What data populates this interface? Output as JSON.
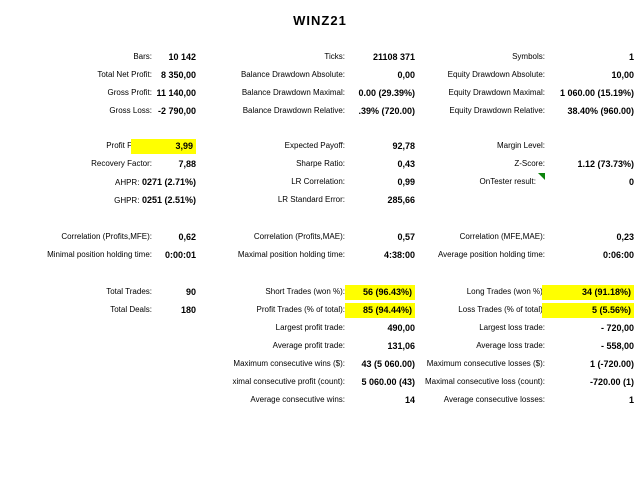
{
  "title": "WINZ21",
  "colors": {
    "background": "#ffffff",
    "text": "#000000",
    "highlight": "#ffff00",
    "marker": "#0c840c"
  },
  "report": {
    "blocks": [
      {
        "rows": [
          {
            "l1": "Bars:",
            "v1": "10 142",
            "l2": "Ticks:",
            "v2": "21108 371",
            "l3": "Symbols:",
            "v3": "1"
          },
          {
            "l1": "Total Net Profit:",
            "v1": "8 350,00",
            "l2": "Balance Drawdown Absolute:",
            "v2": "0,00",
            "l3": "Equity Drawdown Absolute:",
            "v3": "10,00"
          },
          {
            "l1": "Gross Profit:",
            "v1": "11 140,00",
            "l2": "Balance Drawdown Maximal:",
            "v2": "0.00 (29.39%)",
            "l3": "Equity Drawdown Maximal:",
            "v3": "1 060.00 (15.19%)"
          },
          {
            "l1": "Gross Loss:",
            "v1": "-2 790,00",
            "l2": "Balance Drawdown Relative:",
            "v2": ".39% (720.00)",
            "l3": "Equity Drawdown Relative:",
            "v3": "38.40% (960.00)"
          }
        ]
      },
      {
        "rows": [
          {
            "l1": "Profit Factor:",
            "v1": "3,99",
            "hl1": true,
            "l2": "Expected Payoff:",
            "v2": "92,78",
            "l3": "Margin Level:",
            "v3": ""
          },
          {
            "l1": "Recovery Factor:",
            "v1": "7,88",
            "l2": "Sharpe Ratio:",
            "v2": "0,43",
            "l3": "Z-Score:",
            "v3": "1.12 (73.73%)"
          },
          {
            "l1": "AHPR:",
            "v1": "0271 (2.71%)",
            "m1": true,
            "l2": "LR Correlation:",
            "v2": "0,99",
            "l3": "OnTester result:",
            "marker3": true,
            "v3": "0"
          },
          {
            "l1": "GHPR:",
            "v1": "0251 (2.51%)",
            "m1": true,
            "l2": "LR Standard Error:",
            "v2": "285,66",
            "l3": "",
            "v3": ""
          }
        ]
      },
      {
        "rows": [
          {
            "l1": "Correlation (Profits,MFE):",
            "v1": "0,62",
            "l2": "Correlation (Profits,MAE):",
            "v2": "0,57",
            "l3": "Correlation (MFE,MAE):",
            "v3": "0,23"
          },
          {
            "l1": "Minimal position holding time:",
            "v1": "0:00:01",
            "l2": "Maximal position holding time:",
            "v2": "4:38:00",
            "l3": "Average position holding time:",
            "v3": "0:06:00"
          }
        ]
      },
      {
        "rows": [
          {
            "l1": "Total Trades:",
            "v1": "90",
            "l2": "Short Trades (won %):",
            "v2": "56 (96.43%)",
            "hl2": true,
            "l3": "Long Trades (won %):",
            "v3": "34 (91.18%)",
            "hl3": true
          },
          {
            "l1": "Total Deals:",
            "v1": "180",
            "l2": "Profit Trades (% of total):",
            "v2": "85 (94.44%)",
            "hl2": true,
            "l3": "Loss Trades (% of total):",
            "v3": "5 (5.56%)",
            "hl3": true
          },
          {
            "l1": "",
            "v1": "",
            "l2": "Largest profit trade:",
            "v2": "490,00",
            "l3": "Largest loss trade:",
            "v3": "- 720,00"
          },
          {
            "l1": "",
            "v1": "",
            "l2": "Average profit trade:",
            "v2": "131,06",
            "l3": "Average loss trade:",
            "v3": "- 558,00"
          },
          {
            "l1": "",
            "v1": "",
            "l2": "Maximum consecutive wins ($):",
            "v2": "43 (5 060.00)",
            "l3": "Maximum consecutive losses ($):",
            "v3": "1 (-720.00)"
          },
          {
            "l1": "",
            "v1": "",
            "l2": "ximal consecutive profit (count):",
            "v2": "5 060.00 (43)",
            "l3": "Maximal consecutive loss (count):",
            "v3": "-720.00 (1)"
          },
          {
            "l1": "",
            "v1": "",
            "l2": "Average consecutive wins:",
            "v2": "14",
            "l3": "Average consecutive losses:",
            "v3": "1"
          }
        ]
      }
    ]
  }
}
